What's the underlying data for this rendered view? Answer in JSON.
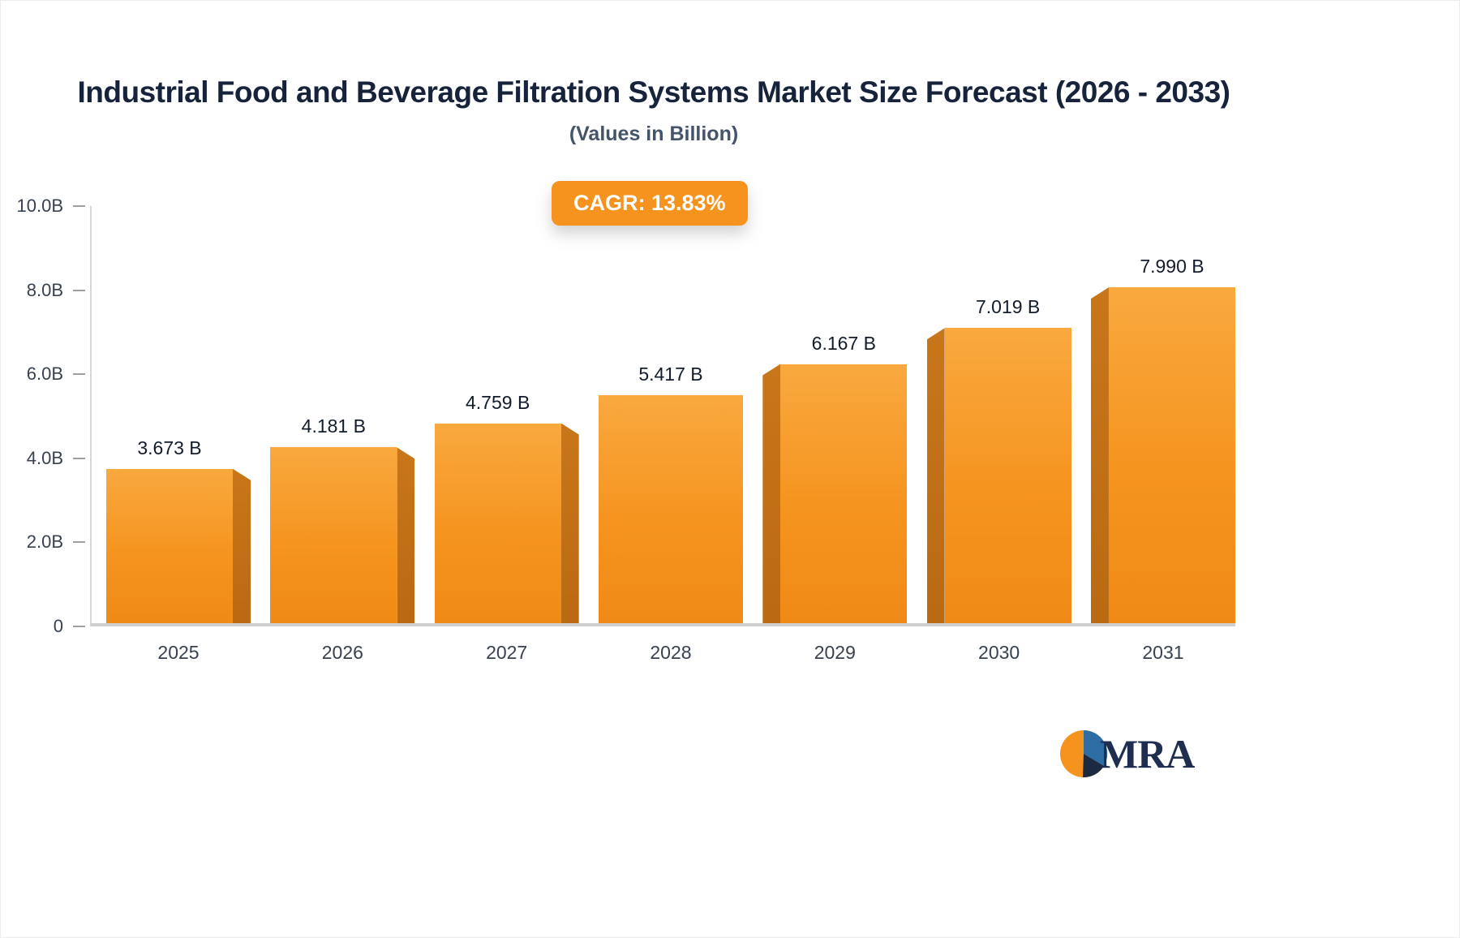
{
  "header": {
    "title": "Industrial Food and Beverage Filtration Systems Market Size Forecast (2026 - 2033)",
    "subtitle": "(Values in Billion)"
  },
  "badge": {
    "label": "CAGR: 13.83%",
    "bg_color": "#F6921E"
  },
  "logo": {
    "text": "MRA",
    "icon": "pie-circle-icon",
    "colors": {
      "orange": "#F6921E",
      "blue": "#2E6DA4",
      "navy": "#1B2A41"
    }
  },
  "chart_data": {
    "type": "bar",
    "title": "Industrial Food and Beverage Filtration Systems Market Size Forecast (2026 - 2033)",
    "subtitle": "(Values in Billion)",
    "categories": [
      "2025",
      "2026",
      "2027",
      "2028",
      "2029",
      "2030",
      "2031"
    ],
    "values": [
      3.673,
      4.181,
      4.759,
      5.417,
      6.167,
      7.019,
      7.99
    ],
    "value_labels": [
      "3.673 B",
      "4.181 B",
      "4.759 B",
      "5.417 B",
      "6.167 B",
      "7.019 B",
      "7.990 B"
    ],
    "ylabel": "",
    "xlabel": "",
    "ylim": [
      0,
      10
    ],
    "yticks": {
      "labels": [
        "10.0B",
        "8.0B",
        "6.0B",
        "4.0B",
        "2.0B",
        "0"
      ],
      "values": [
        10,
        8,
        6,
        4,
        2,
        0
      ]
    },
    "grid": false,
    "legend": false,
    "bar_color": "#F5941F",
    "bar_side_color": "#BE6D14",
    "annotation": "CAGR: 13.83%"
  }
}
